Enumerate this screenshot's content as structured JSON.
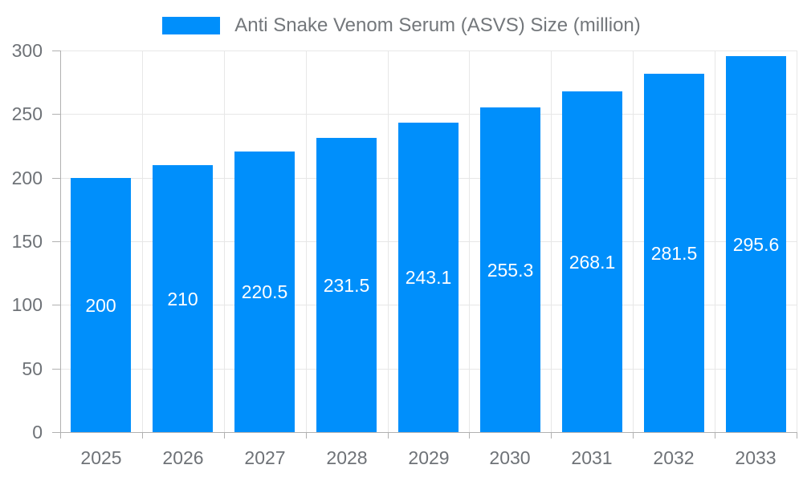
{
  "chart_data": {
    "type": "bar",
    "title": "",
    "categories": [
      "2025",
      "2026",
      "2027",
      "2028",
      "2029",
      "2030",
      "2031",
      "2032",
      "2033"
    ],
    "series": [
      {
        "name": "Anti Snake Venom Serum (ASVS) Size (million)",
        "values": [
          200,
          210,
          220.5,
          231.5,
          243.1,
          255.3,
          268.1,
          281.5,
          295.6
        ]
      }
    ],
    "value_labels": [
      "200",
      "210",
      "220.5",
      "231.5",
      "243.1",
      "255.3",
      "268.1",
      "281.5",
      "295.6"
    ],
    "xlabel": "",
    "ylabel": "",
    "ylim": [
      0,
      300
    ],
    "yticks": [
      0,
      50,
      100,
      150,
      200,
      250,
      300
    ],
    "grid": true,
    "legend_position": "top",
    "colors": {
      "bar": "#008FFB",
      "bar_label": "#ffffff",
      "grid": "#e7e7e7",
      "axis_line": "#b1b1b1",
      "axis_text": "#6e7277",
      "legend_text": "#73777b"
    }
  }
}
